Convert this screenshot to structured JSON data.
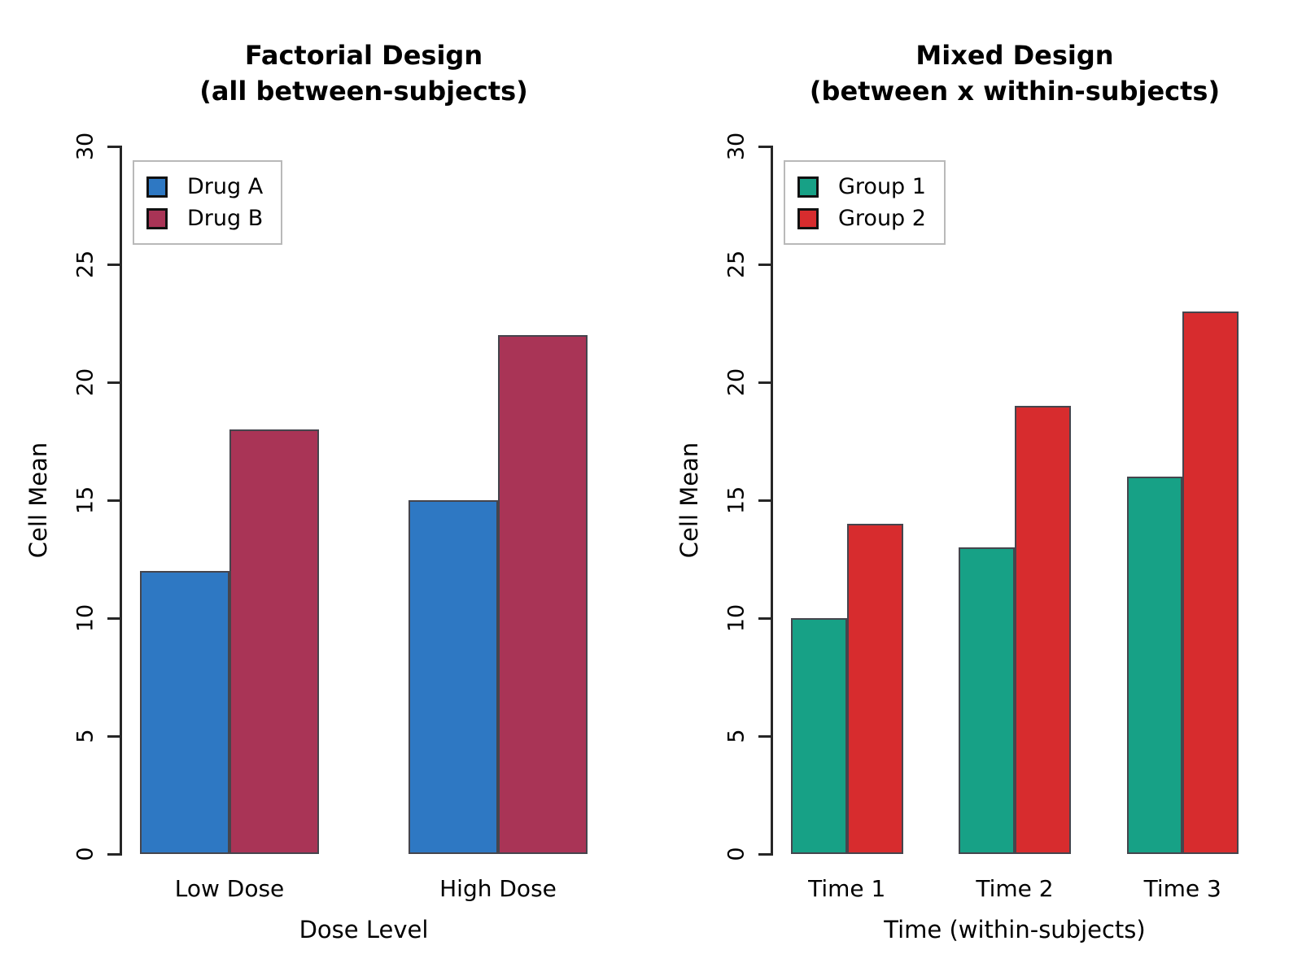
{
  "chart_data": [
    {
      "type": "bar",
      "title_line1": "Factorial Design",
      "title_line2": "(all between-subjects)",
      "xlabel": "Dose Level",
      "ylabel": "Cell Mean",
      "categories": [
        "Low Dose",
        "High Dose"
      ],
      "series": [
        {
          "name": "Drug A",
          "color": "#2E78C3",
          "values": [
            12,
            15
          ]
        },
        {
          "name": "Drug B",
          "color": "#A93456",
          "values": [
            18,
            22
          ]
        }
      ],
      "ylim": [
        0,
        30
      ],
      "yticks": [
        0,
        5,
        10,
        15,
        20,
        25,
        30
      ],
      "legend_position": "topleft",
      "grid": false,
      "bar_border_color": "#45454d"
    },
    {
      "type": "bar",
      "title_line1": "Mixed Design",
      "title_line2": "(between x within-subjects)",
      "xlabel": "Time (within-subjects)",
      "ylabel": "Cell Mean",
      "categories": [
        "Time 1",
        "Time 2",
        "Time 3"
      ],
      "series": [
        {
          "name": "Group 1",
          "color": "#17A186",
          "values": [
            10,
            13,
            16
          ]
        },
        {
          "name": "Group 2",
          "color": "#D72C2E",
          "values": [
            14,
            19,
            23
          ]
        }
      ],
      "ylim": [
        0,
        30
      ],
      "yticks": [
        0,
        5,
        10,
        15,
        20,
        25,
        30
      ],
      "legend_position": "topleft",
      "grid": false,
      "bar_border_color": "#45454d"
    }
  ]
}
